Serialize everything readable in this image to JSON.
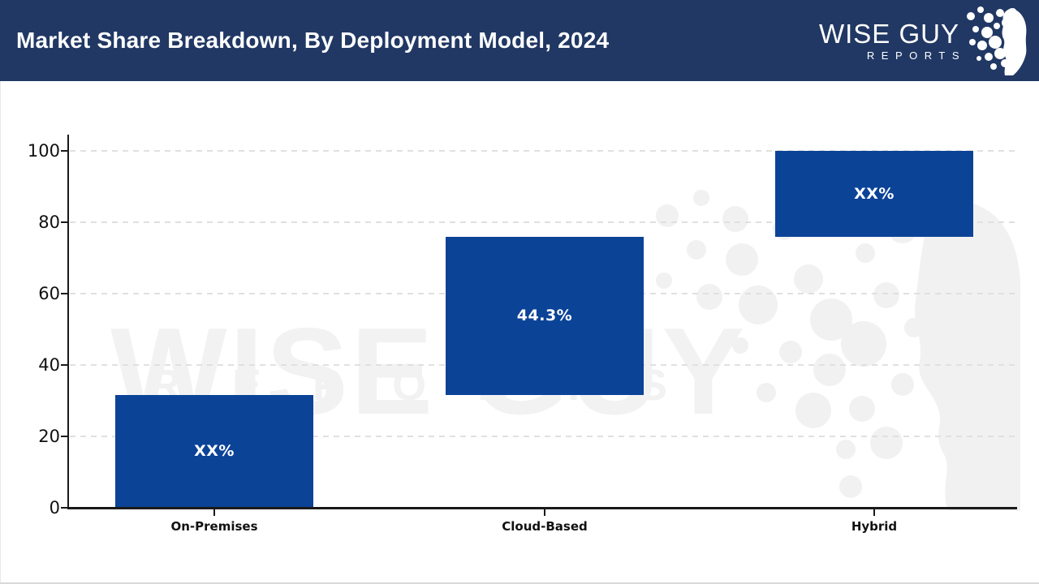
{
  "header": {
    "title": "Market Share Breakdown, By Deployment Model, 2024",
    "logo": {
      "wordmark": "WISE GUY",
      "subtext": "REPORTS"
    }
  },
  "watermark": {
    "wordmark": "WISE GUY",
    "subtext": "R E P O R T S"
  },
  "colors": {
    "header_bg": "#213864",
    "bar": "#0b4397",
    "bar_label": "#ffffff",
    "grid": "#e0e0e0",
    "axis": "#1a1a1a",
    "watermark": "#f2f2f2"
  },
  "chart_data": {
    "type": "bar",
    "subtype": "floating-segment-breakdown",
    "title": "Market Share Breakdown, By Deployment Model, 2024",
    "categories": [
      "On-Premises",
      "Cloud-Based",
      "Hybrid"
    ],
    "segments": [
      {
        "category": "On-Premises",
        "from": 0,
        "to": 31.6,
        "label": "XX%"
      },
      {
        "category": "Cloud-Based",
        "from": 31.6,
        "to": 75.9,
        "label": "44.3%"
      },
      {
        "category": "Hybrid",
        "from": 75.9,
        "to": 100,
        "label": "XX%"
      }
    ],
    "xlabel": "",
    "ylabel": "",
    "ylim": [
      0,
      100
    ],
    "yticks": [
      0,
      20,
      40,
      60,
      80,
      100
    ],
    "grid": "horizontal-dashed",
    "legend": "none"
  }
}
